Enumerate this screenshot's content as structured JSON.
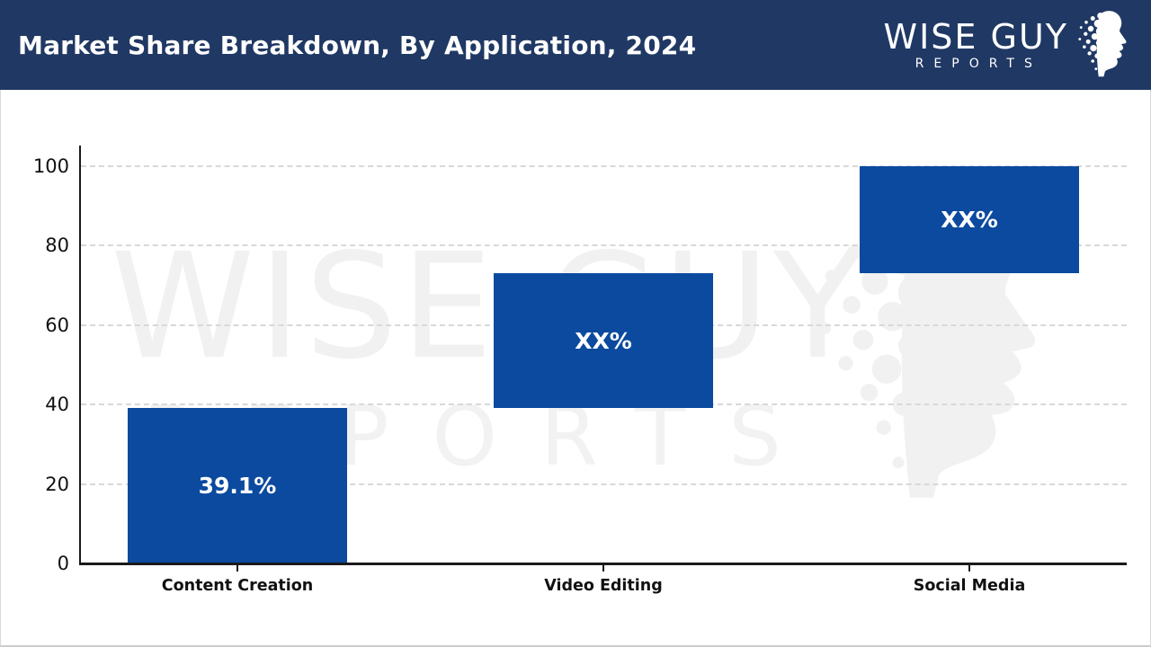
{
  "header": {
    "title": "Market Share Breakdown, By Application, 2024",
    "brand_line1": "WISE GUY",
    "brand_line2": "REPORTS",
    "bg_color": "#203864"
  },
  "watermark": {
    "line1": "WISE GUY",
    "line2": "REPORTS"
  },
  "chart_data": {
    "type": "bar",
    "subtype": "waterfall-floating-bars",
    "title": "Market Share Breakdown, By Application, 2024",
    "categories": [
      "Content Creation",
      "Video Editing",
      "Social Media"
    ],
    "series": [
      {
        "name": "Market Share (%)",
        "segments": [
          {
            "category": "Content Creation",
            "start": 0,
            "end": 39.1,
            "label": "39.1%"
          },
          {
            "category": "Video Editing",
            "start": 39.1,
            "end": 73.1,
            "label": "XX%"
          },
          {
            "category": "Social Media",
            "start": 73.1,
            "end": 100,
            "label": "XX%"
          }
        ]
      }
    ],
    "xlabel": "",
    "ylabel": "",
    "ylim": [
      0,
      105
    ],
    "yticks": [
      0,
      20,
      40,
      60,
      80,
      100
    ],
    "grid": "horizontal-dashed",
    "legend": "none",
    "bar_color": "#0b4a9f",
    "bar_label_color": "#ffffff",
    "axis_color": "#1a1a1a"
  }
}
